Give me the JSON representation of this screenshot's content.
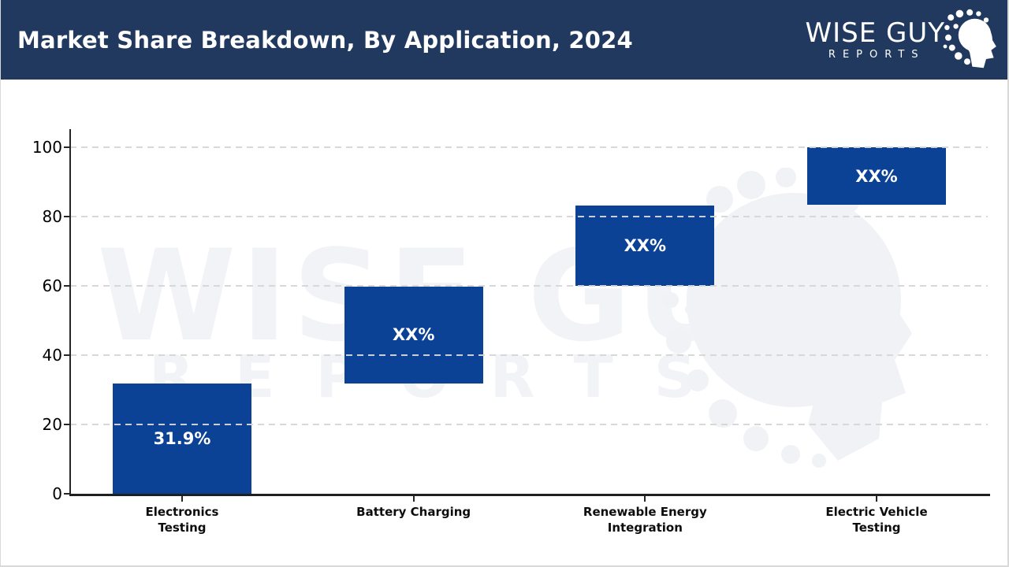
{
  "header": {
    "title": "Market Share Breakdown, By Application, 2024",
    "bg_color": "#21395f",
    "logo": {
      "wordmark": "WISE GUY",
      "subtext": "REPORTS"
    }
  },
  "watermark": {
    "wordmark": "WISE GUY",
    "subtext": "REPORTS"
  },
  "chart_data": {
    "type": "bar",
    "subtype": "waterfall",
    "title": "Market Share Breakdown, By Application, 2024",
    "categories": [
      [
        "Electronics",
        "Testing"
      ],
      [
        "Battery Charging"
      ],
      [
        "Renewable Energy",
        "Integration"
      ],
      [
        "Electric Vehicle",
        "Testing"
      ]
    ],
    "segments": [
      {
        "start": 0,
        "end": 31.9,
        "label": "31.9%"
      },
      {
        "start": 31.9,
        "end": 59.8,
        "label": "XX%"
      },
      {
        "start": 59.9,
        "end": 83.2,
        "label": "XX%"
      },
      {
        "start": 83.3,
        "end": 100,
        "label": "XX%"
      }
    ],
    "yticks": [
      0,
      20,
      40,
      60,
      80,
      100
    ],
    "ylim": [
      0,
      100
    ],
    "xlabel": "",
    "ylabel": "",
    "legend": "none",
    "grid": "horizontal-dashed",
    "grid_over_bars": true,
    "bar_color": "#0b4296",
    "bar_label_color": "#ffffff",
    "axis_color": "#262626",
    "grid_color": "#d6d6d6",
    "tick_label_color": "#000000"
  }
}
